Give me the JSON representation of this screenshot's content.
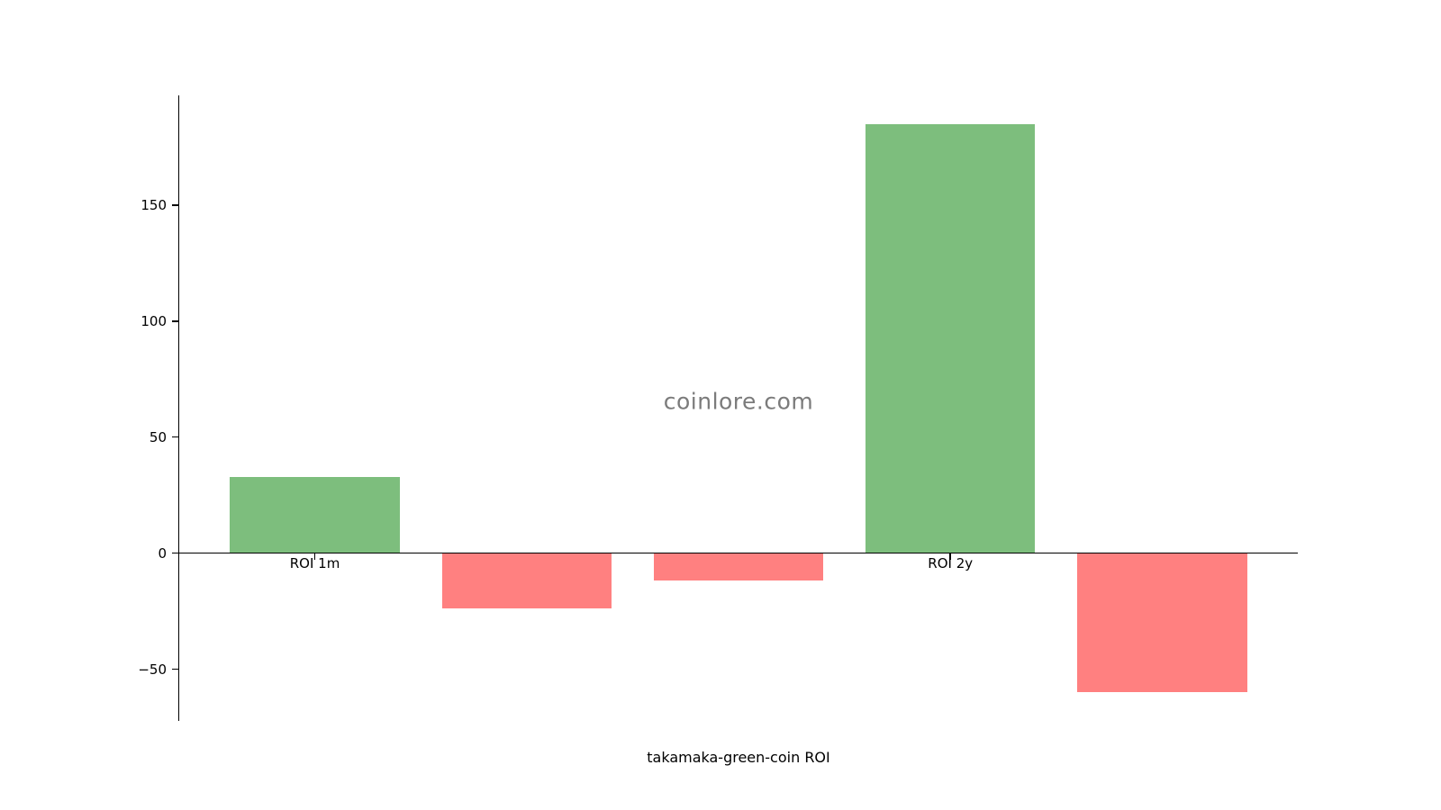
{
  "chart_data": {
    "type": "bar",
    "title": "takamaka-green-coin ROI",
    "watermark": "coinlore.com",
    "categories": [
      "ROI 1m",
      "",
      "",
      "ROI 2y",
      ""
    ],
    "values": [
      33,
      -23.7,
      -11.6,
      185,
      -60
    ],
    "bar_colors": [
      "positive",
      "negative",
      "negative",
      "positive",
      "negative"
    ],
    "yticks": [
      {
        "value": 150,
        "label": "150"
      },
      {
        "value": 100,
        "label": "100"
      },
      {
        "value": 50,
        "label": "50"
      },
      {
        "value": 0,
        "label": "0"
      },
      {
        "value": -50,
        "label": "−50"
      }
    ],
    "ylim": [
      -72.25,
      197.25
    ],
    "xlim": [
      -0.64,
      4.64
    ],
    "bar_width": 0.8,
    "grid": false,
    "legend": null,
    "xlabel": "",
    "ylabel": "",
    "colors": {
      "positive": "#7dbe7d",
      "negative": "#ff8080",
      "axis": "#000000",
      "tick_text": "#000000",
      "watermark": "#7b7b7b",
      "background": "#ffffff"
    }
  }
}
